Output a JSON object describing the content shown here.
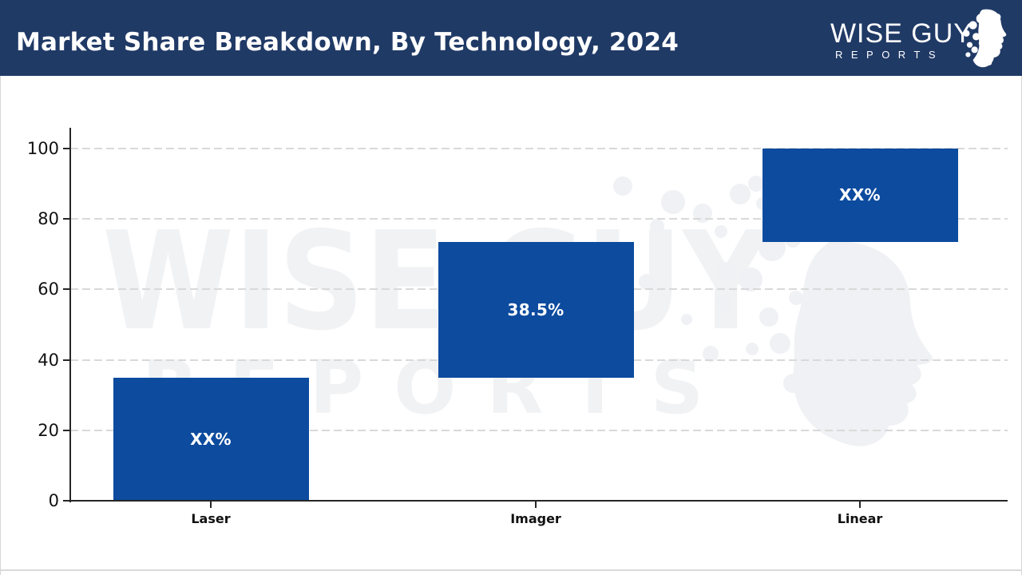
{
  "header": {
    "title": "Market Share Breakdown, By Technology, 2024",
    "logo_line1": "WISE GUY",
    "logo_line2": "REPORTS"
  },
  "watermark": {
    "line1": "WISE GUY",
    "line2": "REPORTS"
  },
  "chart_data": {
    "type": "bar",
    "variant": "stacked-waterfall-segments",
    "title": "Market Share Breakdown, By Technology, 2024",
    "categories": [
      "Laser",
      "Imager",
      "Linear"
    ],
    "segments": [
      {
        "category": "Laser",
        "start": 0,
        "end": 35,
        "value_label": "XX%"
      },
      {
        "category": "Imager",
        "start": 35,
        "end": 73.5,
        "value_label": "38.5%"
      },
      {
        "category": "Linear",
        "start": 73.5,
        "end": 100,
        "value_label": "XX%"
      }
    ],
    "y_ticks": [
      0,
      20,
      40,
      60,
      80,
      100
    ],
    "ylim": [
      0,
      100
    ],
    "xlabel": "",
    "ylabel": "",
    "grid": "horizontal-dashed",
    "legend": "none",
    "colors": {
      "bar": "#0c4b9e",
      "bar_label": "#ffffff",
      "header_bg": "#203a66",
      "grid": "#d9d9d9",
      "axis": "#262626",
      "watermark": "#f1f2f4"
    }
  }
}
